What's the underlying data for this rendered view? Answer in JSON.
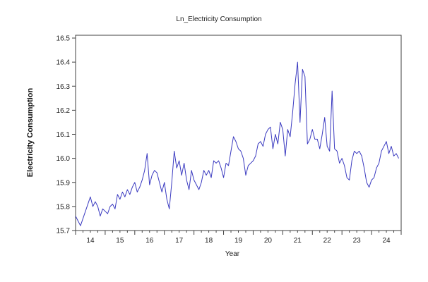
{
  "figure": {
    "background_color": "#ffffff",
    "frame_color": "#404040",
    "text_color": "#1a1a1a"
  },
  "chart_data": {
    "type": "line",
    "title": "Ln_Electricity Consumption",
    "xlabel": "Year",
    "ylabel": "Electricity Consumption",
    "legend": "none",
    "grid": false,
    "line_color": "#3a3ac0",
    "xlim": [
      2014,
      2025
    ],
    "ylim": [
      15.7,
      16.5
    ],
    "yticks": [
      15.7,
      15.8,
      15.9,
      16.0,
      16.1,
      16.2,
      16.3,
      16.4,
      16.5
    ],
    "ytick_format_decimals": 1,
    "xtick_major_years": [
      2014,
      2015,
      2016,
      2017,
      2018,
      2019,
      2020,
      2021,
      2022,
      2023,
      2024,
      2025
    ],
    "xtick_minor_per_year": 4,
    "xtick_year_labels": [
      "14",
      "15",
      "16",
      "17",
      "18",
      "19",
      "20",
      "21",
      "22",
      "23",
      "24"
    ],
    "x_frequency": "monthly",
    "x_start": "2014M01",
    "x_end": "2024M12",
    "series": [
      {
        "name": "Ln_Electricity Consumption",
        "values": [
          15.76,
          15.74,
          15.72,
          15.75,
          15.78,
          15.81,
          15.84,
          15.8,
          15.82,
          15.8,
          15.76,
          15.79,
          15.78,
          15.77,
          15.8,
          15.81,
          15.79,
          15.85,
          15.83,
          15.86,
          15.84,
          15.87,
          15.85,
          15.88,
          15.9,
          15.86,
          15.88,
          15.91,
          15.95,
          16.02,
          15.89,
          15.93,
          15.95,
          15.94,
          15.9,
          15.86,
          15.9,
          15.83,
          15.79,
          15.9,
          16.03,
          15.96,
          15.99,
          15.93,
          15.98,
          15.91,
          15.87,
          15.95,
          15.91,
          15.89,
          15.87,
          15.9,
          15.95,
          15.93,
          15.95,
          15.92,
          15.99,
          15.98,
          15.99,
          15.96,
          15.92,
          15.98,
          15.97,
          16.03,
          16.09,
          16.07,
          16.04,
          16.03,
          16.0,
          15.93,
          15.97,
          15.98,
          15.99,
          16.01,
          16.06,
          16.07,
          16.05,
          16.1,
          16.12,
          16.13,
          16.04,
          16.1,
          16.06,
          16.15,
          16.12,
          16.01,
          16.12,
          16.09,
          16.19,
          16.31,
          16.4,
          16.15,
          16.37,
          16.34,
          16.06,
          16.08,
          16.12,
          16.08,
          16.08,
          16.04,
          16.1,
          16.17,
          16.05,
          16.03,
          16.28,
          16.04,
          16.03,
          15.98,
          16.0,
          15.97,
          15.92,
          15.91,
          15.99,
          16.03,
          16.02,
          16.03,
          16.01,
          15.96,
          15.9,
          15.88,
          15.91,
          15.92,
          15.96,
          15.98,
          16.03,
          16.05,
          16.07,
          16.02,
          16.05,
          16.01,
          16.02,
          16.0
        ]
      }
    ]
  }
}
